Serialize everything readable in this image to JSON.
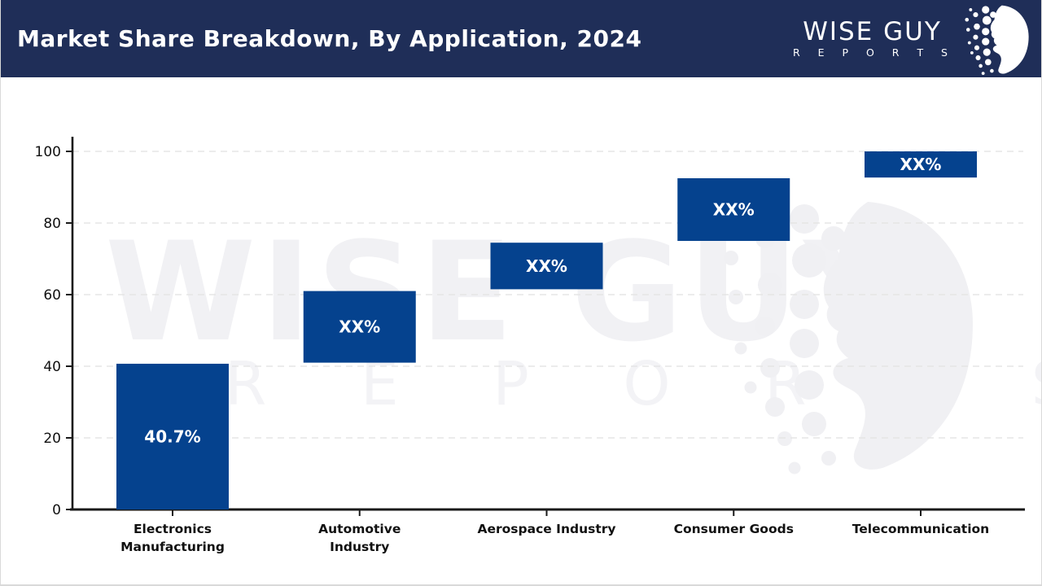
{
  "header": {
    "title": "Market Share Breakdown, By Application, 2024",
    "bg_color": "#1f2e58",
    "logo": {
      "line1": "WISE GUY",
      "line2": "R E P O R T S"
    }
  },
  "watermark": {
    "line1": "WISE GUY",
    "line2": "R E P O R T S"
  },
  "chart_data": {
    "type": "bar",
    "subtype": "floating-waterfall",
    "title": "Market Share Breakdown, By Application, 2024",
    "categories": [
      "Electronics Manufacturing",
      "Automotive Industry",
      "Aerospace Industry",
      "Consumer Goods",
      "Telecommunication"
    ],
    "category_label_lines": [
      [
        "Electronics",
        "Manufacturing"
      ],
      [
        "Automotive",
        "Industry"
      ],
      [
        "Aerospace Industry"
      ],
      [
        "Consumer Goods"
      ],
      [
        "Telecommunication"
      ]
    ],
    "bars": [
      {
        "category": "Electronics Manufacturing",
        "start": 0,
        "end": 40.7,
        "label": "40.7%"
      },
      {
        "category": "Automotive Industry",
        "start": 41,
        "end": 61,
        "label": "XX%"
      },
      {
        "category": "Aerospace Industry",
        "start": 61.5,
        "end": 74.5,
        "label": "XX%"
      },
      {
        "category": "Consumer Goods",
        "start": 75,
        "end": 92.5,
        "label": "XX%"
      },
      {
        "category": "Telecommunication",
        "start": 92.7,
        "end": 100,
        "label": "XX%"
      }
    ],
    "ylim": [
      0,
      100
    ],
    "yticks": [
      0,
      20,
      40,
      60,
      80,
      100
    ],
    "xlabel": "",
    "ylabel": "",
    "grid": "horizontal-dashed",
    "legend": "none",
    "bar_color": "#05428e",
    "bar_label_color": "#ffffff"
  }
}
